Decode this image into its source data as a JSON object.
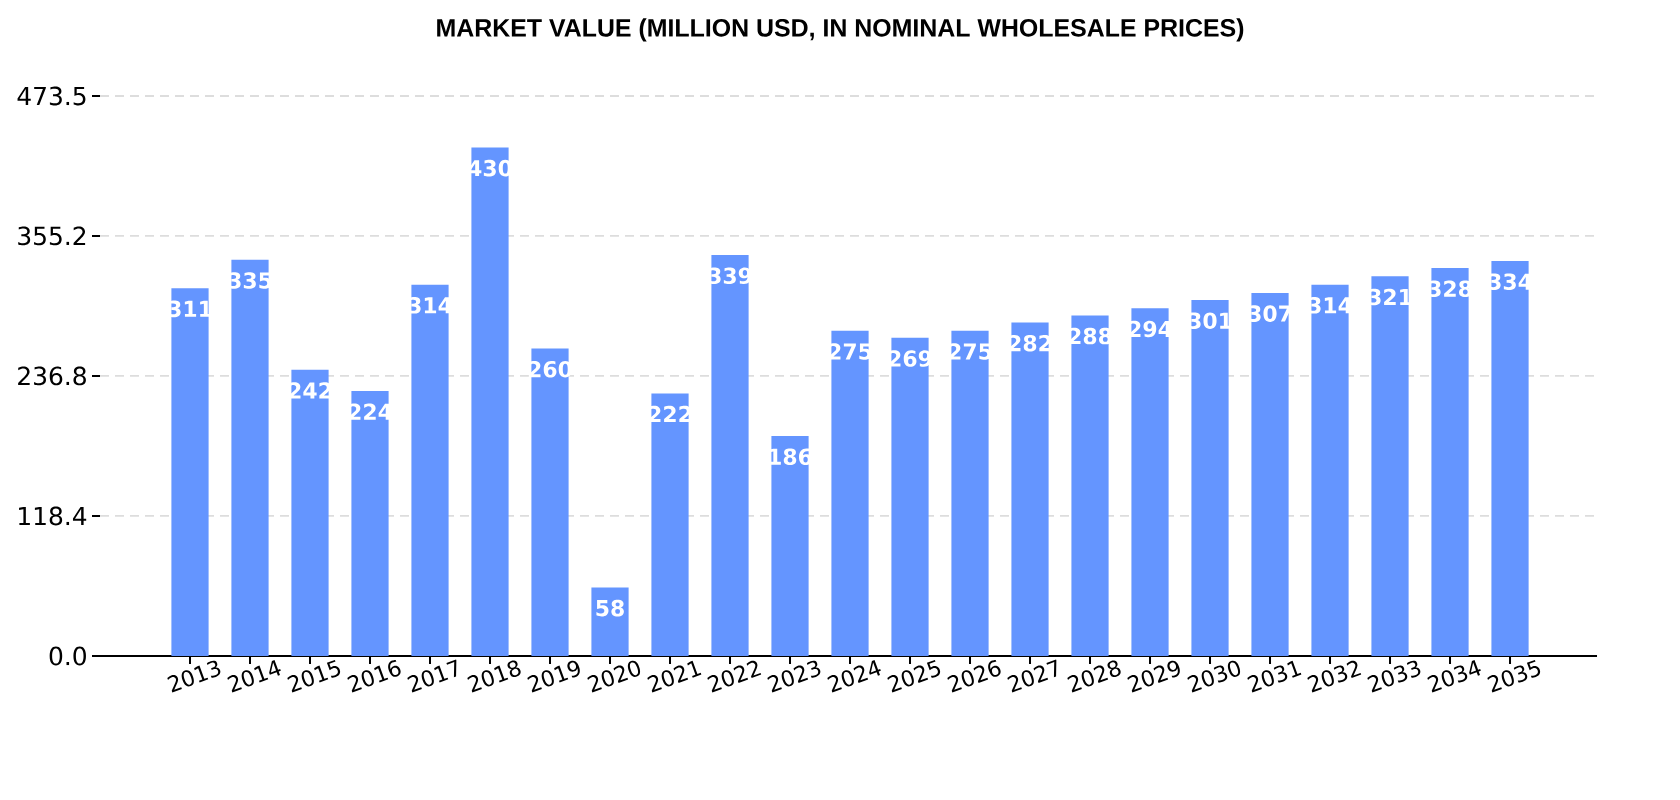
{
  "chart_data": {
    "type": "bar",
    "title": "MARKET VALUE (MILLION USD, IN NOMINAL WHOLESALE PRICES)",
    "categories": [
      "2013",
      "2014",
      "2015",
      "2016",
      "2017",
      "2018",
      "2019",
      "2020",
      "2021",
      "2022",
      "2023",
      "2024",
      "2025",
      "2026",
      "2027",
      "2028",
      "2029",
      "2030",
      "2031",
      "2032",
      "2033",
      "2034",
      "2035"
    ],
    "values": [
      311,
      335,
      242,
      224,
      314,
      430,
      260,
      58,
      222,
      339,
      186,
      275,
      269,
      275,
      282,
      288,
      294,
      301,
      307,
      314,
      321,
      328,
      334
    ],
    "color": "#6495ff",
    "ylim": [
      0,
      473.5
    ],
    "yticks": [
      {
        "value": 0,
        "label": "0.0"
      },
      118.4,
      236.8,
      355.2,
      473.5
    ],
    "grid": "y",
    "data_labels": true
  }
}
